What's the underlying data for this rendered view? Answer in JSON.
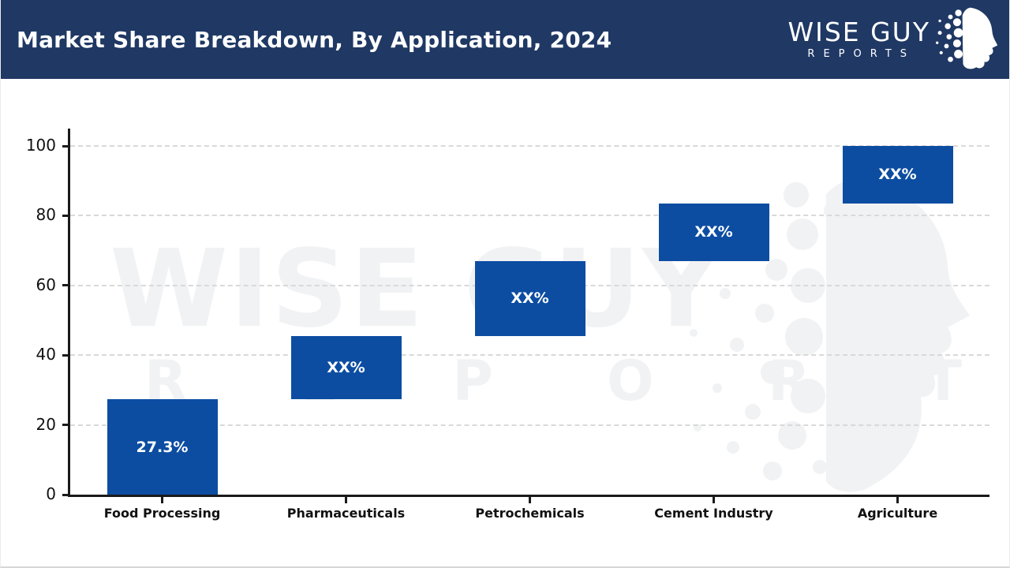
{
  "header": {
    "title": "Market Share Breakdown, By Application, 2024",
    "bg_color": "#1f3864",
    "logo_line1": "WISE GUY",
    "logo_line2": "REPORTS"
  },
  "watermark": {
    "line1": "WISE GUY",
    "line2": "R E P O R T S"
  },
  "chart_data": {
    "type": "bar",
    "subtype": "waterfall",
    "title": "Market Share Breakdown, By Application, 2024",
    "categories": [
      "Food Processing",
      "Pharmaceuticals",
      "Petrochemicals",
      "Cement Industry",
      "Agriculture"
    ],
    "segments": [
      {
        "label": "27.3%",
        "start": 0,
        "end": 27.3
      },
      {
        "label": "XX%",
        "start": 27.3,
        "end": 45.5
      },
      {
        "label": "XX%",
        "start": 45.5,
        "end": 67.0
      },
      {
        "label": "XX%",
        "start": 67.0,
        "end": 83.5
      },
      {
        "label": "XX%",
        "start": 83.5,
        "end": 100
      }
    ],
    "yticks": [
      0,
      20,
      40,
      60,
      80,
      100
    ],
    "ylim": [
      0,
      100
    ],
    "xlabel": "",
    "ylabel": "",
    "legend": "none",
    "grid": "horizontal-dashed",
    "bar_color": "#0c4da2",
    "bar_label_color": "#ffffff",
    "grid_color": "#d9d9d9",
    "axis_color": "#1a1a1a"
  }
}
